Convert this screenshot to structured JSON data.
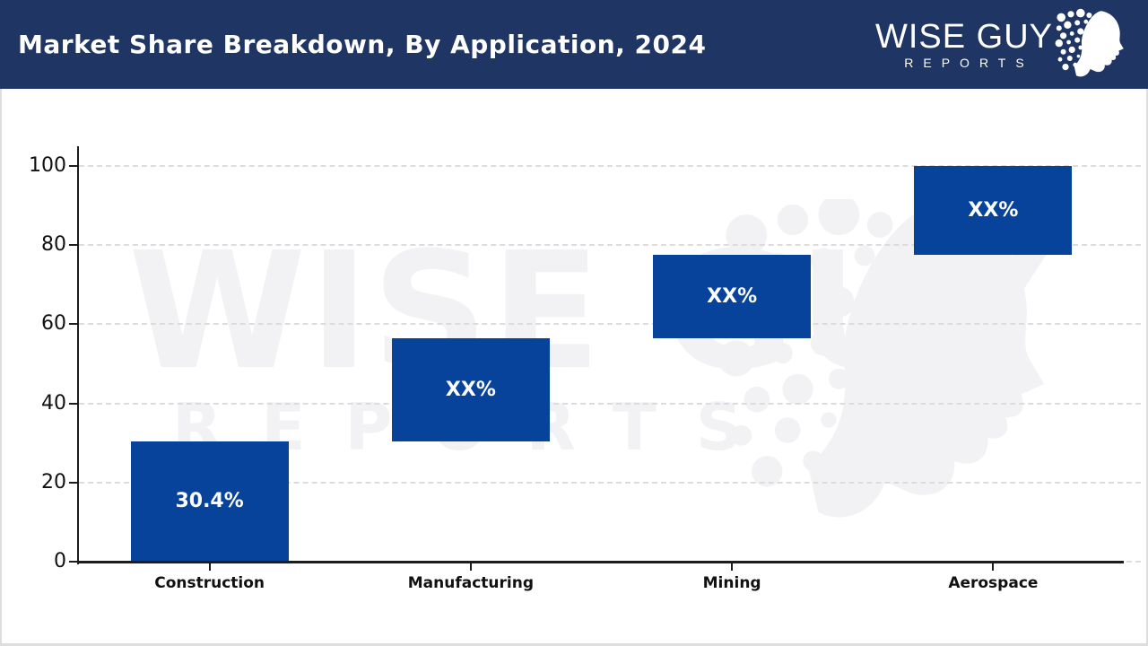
{
  "header": {
    "title": "Market Share Breakdown, By Application, 2024",
    "logo": {
      "name": "WISE GUY",
      "tagline": "REPORTS"
    }
  },
  "watermark": {
    "name": "WISE GUY",
    "tagline": "REPORTS"
  },
  "colors": {
    "header_background": "#1f3564",
    "bar_blue": "#07439b",
    "gridline_gray": "#dcdcdc",
    "watermark_gray": "#f2f2f4"
  },
  "chart_data": {
    "type": "bar",
    "subtype": "waterfall",
    "title": "Market Share Breakdown, By Application, 2024",
    "categories": [
      "Construction",
      "Manufacturing",
      "Mining",
      "Aerospace"
    ],
    "series": [
      {
        "name": "Market Share (%)",
        "segments": [
          {
            "category": "Construction",
            "start": 0,
            "end": 30.4,
            "label": "30.4%"
          },
          {
            "category": "Manufacturing",
            "start": 30.4,
            "end": 56.5,
            "label": "XX%"
          },
          {
            "category": "Mining",
            "start": 56.5,
            "end": 77.5,
            "label": "XX%"
          },
          {
            "category": "Aerospace",
            "start": 77.5,
            "end": 100,
            "label": "XX%"
          }
        ]
      }
    ],
    "xlabel": "",
    "ylabel": "",
    "ylim": [
      0,
      100
    ],
    "yticks": [
      0,
      20,
      40,
      60,
      80,
      100
    ],
    "grid": "horizontal-dashed",
    "legend": "none",
    "bar_color": "#07439b",
    "label_color": "#ffffff"
  }
}
